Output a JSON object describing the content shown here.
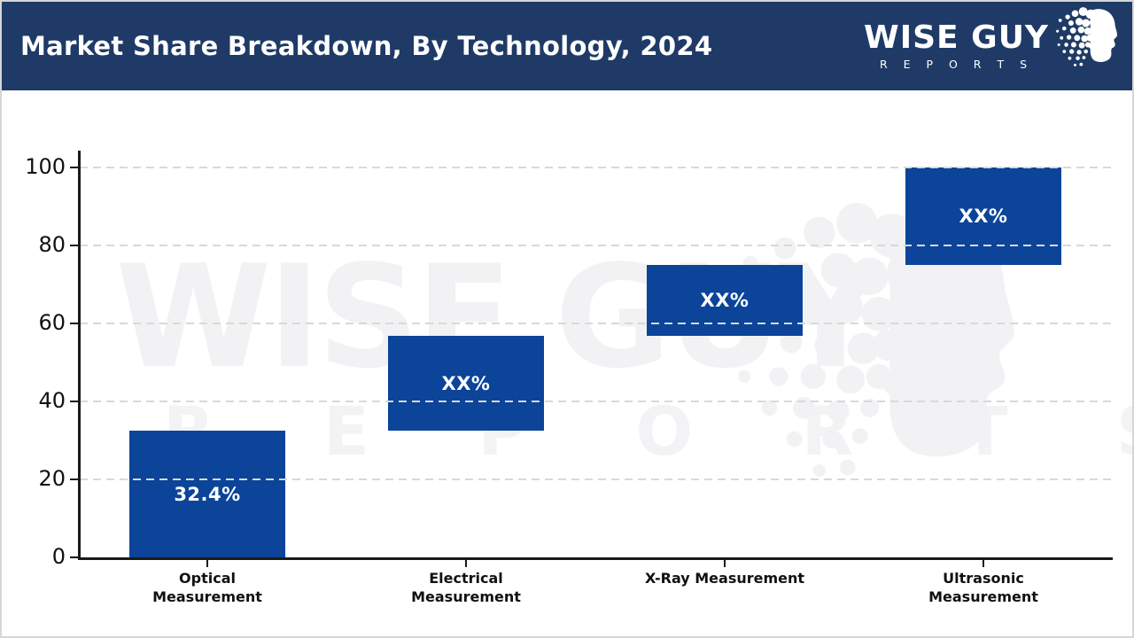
{
  "header": {
    "title": "Market Share Breakdown, By Technology, 2024",
    "logo": {
      "name": "WISE GUY",
      "sub": "R E P O R T S"
    }
  },
  "watermark": {
    "line1": "WISE GUY",
    "line2": "R E P O R T S"
  },
  "chart_data": {
    "type": "bar",
    "subtype": "waterfall",
    "title": "Market Share Breakdown, By Technology, 2024",
    "categories": [
      "Optical\nMeasurement",
      "Electrical\nMeasurement",
      "X-Ray Measurement",
      "Ultrasonic\nMeasurement"
    ],
    "segments": [
      {
        "category": "Optical Measurement",
        "start": 0,
        "end": 32.4,
        "label": "32.4%"
      },
      {
        "category": "Electrical Measurement",
        "start": 32.4,
        "end": 56.8,
        "label": "XX%"
      },
      {
        "category": "X-Ray Measurement",
        "start": 56.8,
        "end": 75.0,
        "label": "XX%"
      },
      {
        "category": "Ultrasonic Measurement",
        "start": 75.0,
        "end": 100.0,
        "label": "XX%"
      }
    ],
    "xlabel": "",
    "ylabel": "",
    "ylim": [
      0,
      100
    ],
    "yticks": [
      0,
      20,
      40,
      60,
      80,
      100
    ],
    "grid": "horizontal-dashed",
    "legend": "none",
    "colors": {
      "bar": "#0b4499",
      "bar_label": "#ffffff",
      "grid": "#d9d9d9",
      "axis": "#1a1a1a",
      "header_bg": "#1f3a66",
      "header_text": "#ffffff",
      "watermark": "#f2f2f4"
    }
  }
}
